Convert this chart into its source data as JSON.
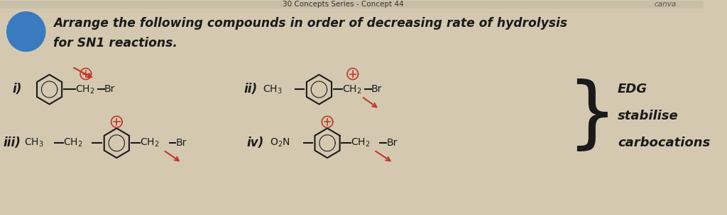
{
  "background_color": "#d4c9b0",
  "top_bar_color": "#c8bfa8",
  "header_text": "30 Concepts Series - Concept 44",
  "canva_text": "canva",
  "title_line1": "Arrange the following compounds in order of decreasing rate of hydrolysis",
  "title_line2": "for SN1 reactions.",
  "note_line1": "EDG",
  "note_line2": "stabilise",
  "note_line3": "carbocations",
  "text_color": "#1a1a1a",
  "arrow_color": "#c0392b",
  "plus_color": "#c0392b",
  "ring_color": "#1a1a1a",
  "font_family": "DejaVu Sans",
  "title_fontsize": 15,
  "label_fontsize": 14,
  "note_fontsize": 13
}
